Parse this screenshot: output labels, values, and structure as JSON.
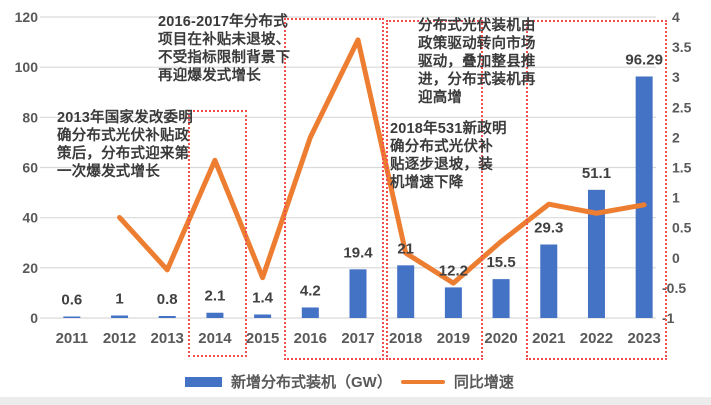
{
  "chart_data": {
    "type": "bar+line combo",
    "categories": [
      "2011",
      "2012",
      "2013",
      "2014",
      "2015",
      "2016",
      "2017",
      "2018",
      "2019",
      "2020",
      "2021",
      "2022",
      "2023"
    ],
    "series": [
      {
        "name": "新增分布式装机（GW）",
        "type": "bar",
        "axis": "left",
        "values": [
          0.6,
          1,
          0.8,
          2.1,
          1.4,
          4.2,
          19.4,
          21,
          12.2,
          15.5,
          29.3,
          51.1,
          96.29
        ]
      },
      {
        "name": "同比增速",
        "type": "line",
        "axis": "right",
        "values": [
          null,
          0.67,
          -0.2,
          1.62,
          -0.33,
          2.0,
          3.62,
          0.08,
          -0.42,
          0.27,
          0.89,
          0.74,
          0.88
        ]
      }
    ],
    "left_axis": {
      "min": 0,
      "max": 120,
      "ticks": [
        "0",
        "20",
        "40",
        "60",
        "80",
        "100",
        "120"
      ]
    },
    "right_axis": {
      "min": -1,
      "max": 4,
      "ticks": [
        "4",
        "3.5",
        "3",
        "2.5",
        "2",
        "1.5",
        "1",
        "0.5",
        "0",
        "-0.5",
        "-1"
      ]
    },
    "grid": true,
    "legend_position": "bottom",
    "colors": {
      "bar": "#4472C4",
      "line": "#ED7D31",
      "grid": "#D9D9D9",
      "axis_text": "#595959",
      "bar_label_text": "#404040",
      "highlight_box": "#F34F4F"
    }
  },
  "legend": {
    "bar_label": "新增分布式装机（GW）",
    "line_label": "同比增速"
  },
  "annotations": {
    "policy_2013": "2013年国家发改委明\n确分布式光伏补贴政\n策后，分布式迎来第\n一次爆发式增长",
    "boom_2016_2017": "2016-2017年分布式\n项目在补贴未退坡、\n不受指标限制背景下\n再迎爆发式增长",
    "market_driven": "分布式光伏装机由\n政策驱动转向市场\n驱动，叠加整县推\n进，分布式装机再\n迎高增",
    "policy_2018": "2018年531新政明\n确分布式光伏补\n贴逐步退坡，装\n机增速下降"
  }
}
